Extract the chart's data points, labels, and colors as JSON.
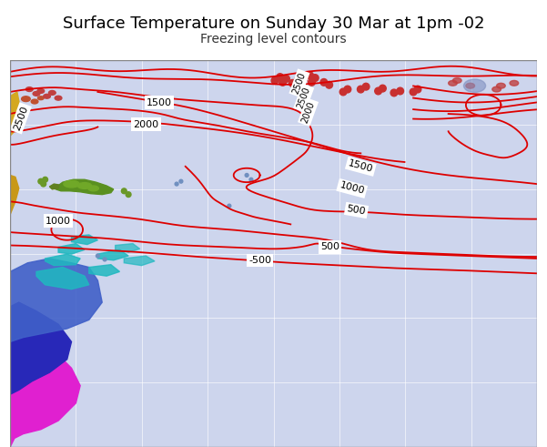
{
  "title": "Surface Temperature on Sunday 30 Mar at 1pm -02",
  "subtitle": "Freezing level contours",
  "bg_color": "#cdd5ed",
  "title_fontsize": 13,
  "subtitle_fontsize": 10,
  "figsize": [
    6.01,
    4.91
  ],
  "dpi": 100,
  "contour_color": "#dd0000",
  "grid_color": "#ffffff",
  "contour_lw": 1.3,
  "label_fontsize": 8
}
